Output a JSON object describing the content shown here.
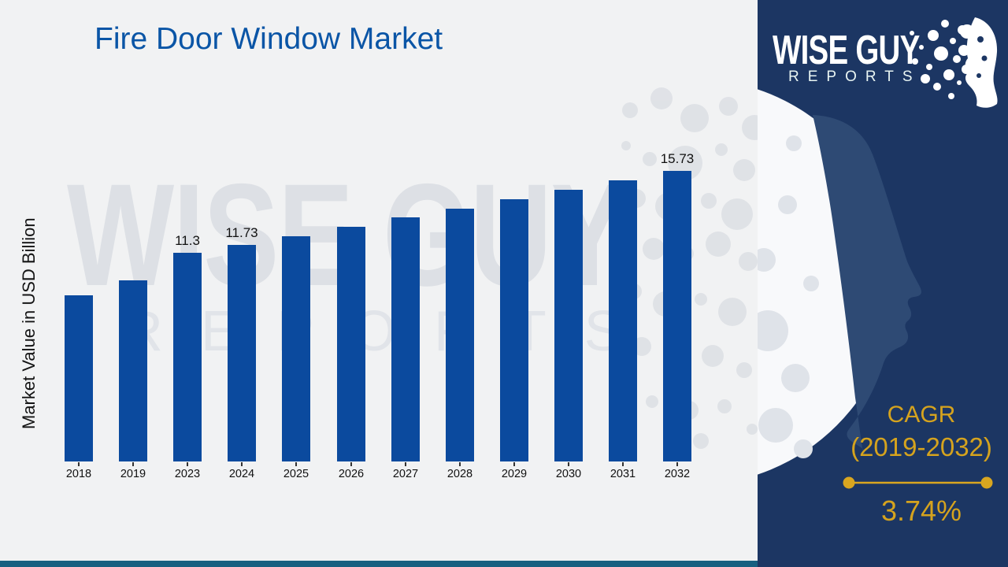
{
  "title": "Fire Door Window Market",
  "y_axis_label": "Market Value in USD Billion",
  "watermark": {
    "line1": "WISE GUY",
    "line2": "REPORTS"
  },
  "brand": {
    "line1": "WISE GUY",
    "line2": "REPORTS"
  },
  "cagr": {
    "label": "CAGR",
    "range": "(2019-2032)",
    "value": "3.74%"
  },
  "colors": {
    "bar_blue": "#0b4a9e",
    "title_blue": "#0a55a6",
    "panel_navy": "#1c3663",
    "accent_gold": "#d9a620",
    "bottom_strip_teal": "#175f80",
    "background": "#f1f2f3",
    "watermark_gray": "#dde0e5",
    "face_blue": "#2e4a74",
    "circle_white": "#f8f9fb"
  },
  "chart_data": {
    "type": "bar",
    "title": "Fire Door Window Market",
    "xlabel": "",
    "ylabel": "Market Value in USD Billion",
    "categories": [
      "2018",
      "2019",
      "2023",
      "2024",
      "2025",
      "2026",
      "2027",
      "2028",
      "2029",
      "2030",
      "2031",
      "2032"
    ],
    "values": [
      9.0,
      9.8,
      11.3,
      11.73,
      12.2,
      12.7,
      13.2,
      13.7,
      14.2,
      14.7,
      15.2,
      15.73
    ],
    "data_labels": [
      "",
      "",
      "11.3",
      "11.73",
      "",
      "",
      "",
      "",
      "",
      "",
      "",
      "15.73"
    ],
    "unit": "USD Billion",
    "ylim": [
      0,
      17
    ],
    "grid": false,
    "axis_lines": false,
    "legend": "none"
  }
}
